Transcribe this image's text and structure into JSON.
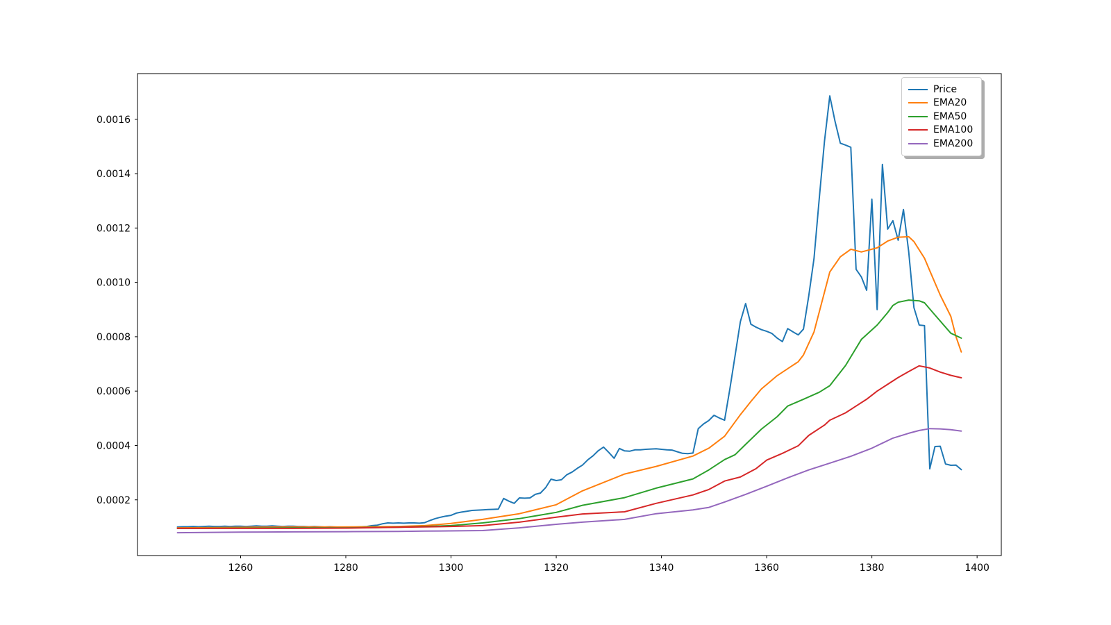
{
  "chart_data": {
    "type": "line",
    "title": "",
    "xlabel": "",
    "ylabel": "",
    "grid": false,
    "xlim": [
      1240.4,
      1404.6
    ],
    "ylim": [
      -5e-06,
      0.001768
    ],
    "x_ticks": [
      1260,
      1280,
      1300,
      1320,
      1340,
      1360,
      1380,
      1400
    ],
    "x_tick_labels": [
      "1260",
      "1280",
      "1300",
      "1320",
      "1340",
      "1360",
      "1380",
      "1400"
    ],
    "y_ticks": [
      0.0002,
      0.0004,
      0.0006,
      0.0008,
      0.001,
      0.0012,
      0.0014,
      0.0016
    ],
    "y_tick_labels": [
      "0.0002",
      "0.0004",
      "0.0006",
      "0.0008",
      "0.0010",
      "0.0012",
      "0.0014",
      "0.0016"
    ],
    "y_scale": 1e-06,
    "legend": {
      "position": "upper right",
      "entries": [
        "Price",
        "EMA20",
        "EMA50",
        "EMA100",
        "EMA200"
      ]
    },
    "series": [
      {
        "name": "Price",
        "color": "#1f77b4",
        "x_start": 1248,
        "x_step": 1,
        "y": [
          100,
          101,
          101,
          102,
          101,
          102,
          103,
          102,
          102,
          103,
          102,
          103,
          103,
          102,
          103,
          104,
          103,
          103,
          104,
          103,
          102,
          103,
          103,
          102,
          102,
          101,
          102,
          101,
          100,
          101,
          100,
          99,
          99,
          100,
          100,
          101,
          102,
          105,
          107,
          112,
          115,
          114,
          115,
          114,
          115,
          115,
          114,
          116,
          124,
          131,
          136,
          140,
          143,
          151,
          155,
          158,
          161,
          162,
          163,
          164,
          165,
          166,
          205,
          195,
          187,
          207,
          206,
          207,
          220,
          225,
          245,
          276,
          271,
          274,
          292,
          302,
          316,
          328,
          347,
          362,
          381,
          394,
          374,
          353,
          389,
          380,
          379,
          384,
          384,
          386,
          387,
          388,
          386,
          384,
          383,
          377,
          371,
          370,
          372,
          462,
          479,
          492,
          511,
          501,
          493,
          608,
          730,
          855,
          922,
          846,
          835,
          826,
          820,
          812,
          795,
          782,
          830,
          818,
          807,
          828,
          950,
          1088,
          1310,
          1520,
          1686,
          1592,
          1512,
          1505,
          1497,
          1048,
          1020,
          971,
          1306,
          900,
          1434,
          1196,
          1227,
          1155,
          1268,
          1112,
          907,
          843,
          841,
          314,
          396,
          397,
          332,
          327,
          328,
          311
        ]
      },
      {
        "name": "EMA20",
        "color": "#ff7f0e",
        "points": [
          [
            1248,
            97
          ],
          [
            1255,
            98
          ],
          [
            1262,
            99
          ],
          [
            1270,
            100
          ],
          [
            1278,
            100
          ],
          [
            1285,
            101
          ],
          [
            1290,
            102
          ],
          [
            1295,
            105
          ],
          [
            1300,
            113
          ],
          [
            1306,
            128
          ],
          [
            1313,
            149
          ],
          [
            1320,
            182
          ],
          [
            1325,
            233
          ],
          [
            1333,
            295
          ],
          [
            1339,
            323
          ],
          [
            1346,
            361
          ],
          [
            1349,
            390
          ],
          [
            1352,
            434
          ],
          [
            1355,
            513
          ],
          [
            1357,
            562
          ],
          [
            1359,
            608
          ],
          [
            1362,
            657
          ],
          [
            1366,
            708
          ],
          [
            1367,
            733
          ],
          [
            1369,
            818
          ],
          [
            1372,
            1038
          ],
          [
            1374,
            1094
          ],
          [
            1376,
            1122
          ],
          [
            1378,
            1112
          ],
          [
            1381,
            1127
          ],
          [
            1383,
            1152
          ],
          [
            1385,
            1166
          ],
          [
            1387,
            1168
          ],
          [
            1388,
            1150
          ],
          [
            1390,
            1089
          ],
          [
            1391,
            1043
          ],
          [
            1393,
            953
          ],
          [
            1395,
            875
          ],
          [
            1396,
            800
          ],
          [
            1397,
            744
          ]
        ]
      },
      {
        "name": "EMA50",
        "color": "#2ca02c",
        "points": [
          [
            1248,
            95
          ],
          [
            1260,
            96
          ],
          [
            1270,
            97
          ],
          [
            1280,
            97
          ],
          [
            1290,
            99
          ],
          [
            1300,
            105
          ],
          [
            1306,
            115
          ],
          [
            1313,
            131
          ],
          [
            1320,
            154
          ],
          [
            1325,
            180
          ],
          [
            1333,
            208
          ],
          [
            1339,
            243
          ],
          [
            1346,
            277
          ],
          [
            1349,
            310
          ],
          [
            1352,
            348
          ],
          [
            1354,
            366
          ],
          [
            1356,
            404
          ],
          [
            1359,
            460
          ],
          [
            1362,
            506
          ],
          [
            1364,
            545
          ],
          [
            1367,
            570
          ],
          [
            1370,
            596
          ],
          [
            1372,
            620
          ],
          [
            1375,
            694
          ],
          [
            1378,
            790
          ],
          [
            1381,
            843
          ],
          [
            1383,
            889
          ],
          [
            1384,
            915
          ],
          [
            1385,
            927
          ],
          [
            1387,
            935
          ],
          [
            1389,
            932
          ],
          [
            1390,
            925
          ],
          [
            1392,
            880
          ],
          [
            1395,
            813
          ],
          [
            1397,
            795
          ]
        ]
      },
      {
        "name": "EMA100",
        "color": "#d62728",
        "points": [
          [
            1248,
            95
          ],
          [
            1260,
            95
          ],
          [
            1270,
            95
          ],
          [
            1280,
            96
          ],
          [
            1290,
            99
          ],
          [
            1300,
            102
          ],
          [
            1306,
            105
          ],
          [
            1313,
            118
          ],
          [
            1320,
            136
          ],
          [
            1325,
            148
          ],
          [
            1333,
            156
          ],
          [
            1339,
            187
          ],
          [
            1346,
            218
          ],
          [
            1349,
            238
          ],
          [
            1352,
            269
          ],
          [
            1355,
            284
          ],
          [
            1358,
            315
          ],
          [
            1360,
            346
          ],
          [
            1363,
            371
          ],
          [
            1366,
            399
          ],
          [
            1368,
            437
          ],
          [
            1371,
            475
          ],
          [
            1372,
            493
          ],
          [
            1375,
            520
          ],
          [
            1377,
            545
          ],
          [
            1379,
            570
          ],
          [
            1381,
            600
          ],
          [
            1383,
            625
          ],
          [
            1385,
            650
          ],
          [
            1387,
            672
          ],
          [
            1389,
            693
          ],
          [
            1391,
            685
          ],
          [
            1393,
            670
          ],
          [
            1395,
            658
          ],
          [
            1397,
            649
          ]
        ]
      },
      {
        "name": "EMA200",
        "color": "#9467bd",
        "points": [
          [
            1248,
            79
          ],
          [
            1260,
            81
          ],
          [
            1270,
            82
          ],
          [
            1280,
            83
          ],
          [
            1290,
            84
          ],
          [
            1295,
            85
          ],
          [
            1306,
            87
          ],
          [
            1313,
            97
          ],
          [
            1320,
            110
          ],
          [
            1325,
            118
          ],
          [
            1333,
            128
          ],
          [
            1339,
            149
          ],
          [
            1346,
            163
          ],
          [
            1349,
            172
          ],
          [
            1352,
            192
          ],
          [
            1356,
            220
          ],
          [
            1360,
            250
          ],
          [
            1364,
            281
          ],
          [
            1368,
            310
          ],
          [
            1372,
            335
          ],
          [
            1376,
            360
          ],
          [
            1380,
            390
          ],
          [
            1384,
            427
          ],
          [
            1387,
            445
          ],
          [
            1389,
            455
          ],
          [
            1391,
            462
          ],
          [
            1393,
            461
          ],
          [
            1395,
            458
          ],
          [
            1397,
            453
          ]
        ]
      }
    ]
  }
}
